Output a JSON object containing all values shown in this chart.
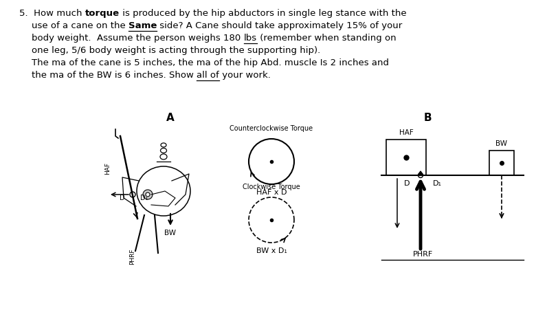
{
  "background": "#ffffff",
  "text_color": "#000000",
  "label_A": "A",
  "label_B": "B",
  "ccw_label": "Counterclockwise Torque",
  "ccw_formula": "HAF x D",
  "cw_label": "Clockwise Torque",
  "cw_formula": "BW x D₁",
  "diagram_b": {
    "HAF": "HAF",
    "BW": "BW",
    "D": "D",
    "D1": "D₁",
    "PHRF": "PHRF"
  }
}
